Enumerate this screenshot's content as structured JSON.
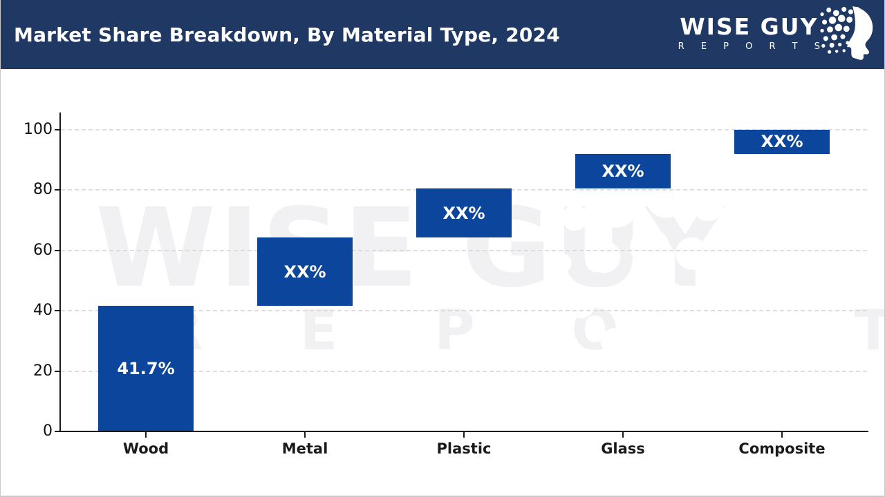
{
  "header": {
    "title": "Market Share Breakdown, By Material Type, 2024",
    "bg_color": "#1f3864",
    "logo": {
      "line1": "WISE GUY",
      "line2": "R E P O R T S"
    }
  },
  "watermark": {
    "line1": "WISE GUY",
    "line2": "R E P O R T S"
  },
  "chart_data": {
    "type": "bar",
    "subtype": "waterfall",
    "title": "Market Share Breakdown, By Material Type, 2024",
    "categories": [
      "Wood",
      "Metal",
      "Plastic",
      "Glass",
      "Composite"
    ],
    "segments": [
      {
        "category": "Wood",
        "start": 0,
        "end": 41.7,
        "label": "41.7%"
      },
      {
        "category": "Metal",
        "start": 41.7,
        "end": 64.2,
        "label": "XX%"
      },
      {
        "category": "Plastic",
        "start": 64.2,
        "end": 80.6,
        "label": "XX%"
      },
      {
        "category": "Glass",
        "start": 80.6,
        "end": 92.0,
        "label": "XX%"
      },
      {
        "category": "Composite",
        "start": 92.0,
        "end": 100,
        "label": "XX%"
      }
    ],
    "xlabel": "",
    "ylabel": "",
    "ylim": [
      0,
      100
    ],
    "yticks": [
      0,
      20,
      40,
      60,
      80,
      100
    ],
    "grid": "horizontal-dashed",
    "legend": "none",
    "bar_color": "#0b459c",
    "bar_label_color": "#ffffff",
    "axis_color": "#1a1a1a",
    "grid_color": "#dddddd"
  }
}
